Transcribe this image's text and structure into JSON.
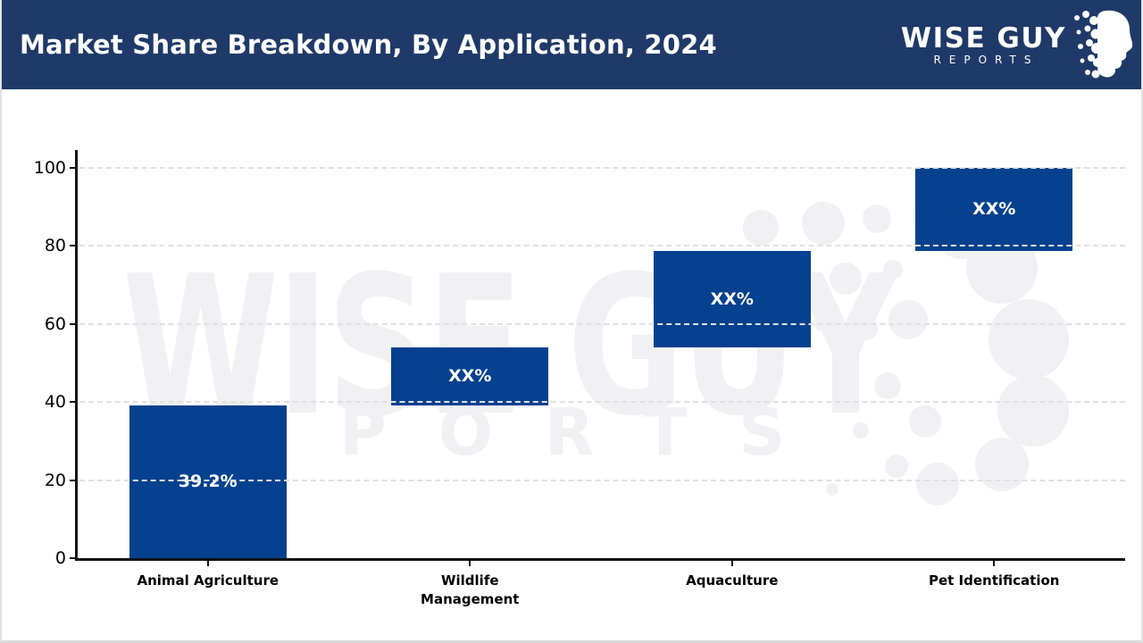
{
  "header": {
    "title": "Market Share Breakdown, By Application, 2024",
    "bg_color": "#1f3a68",
    "logo": {
      "wordmark": "WISE GUY",
      "subtext": "REPORTS"
    }
  },
  "watermark": {
    "line1": "WISE GUY",
    "line2": "PORTS"
  },
  "chart_data": {
    "type": "bar",
    "subtype": "waterfall-floating-bars",
    "title": "Market Share Breakdown, By Application, 2024",
    "categories": [
      "Animal Agriculture",
      "Wildlife\nManagement",
      "Aquaculture",
      "Pet Identification"
    ],
    "bars": [
      {
        "category": "Animal Agriculture",
        "start": 0,
        "end": 39.2,
        "label": "39.2%"
      },
      {
        "category": "Wildlife Management",
        "start": 39.2,
        "end": 53.9,
        "label": "XX%"
      },
      {
        "category": "Aquaculture",
        "start": 53.9,
        "end": 78.6,
        "label": "XX%"
      },
      {
        "category": "Pet Identification",
        "start": 78.6,
        "end": 100,
        "label": "XX%"
      }
    ],
    "xlabel": "",
    "ylabel": "",
    "ylim": [
      0,
      100
    ],
    "yticks": [
      0,
      20,
      40,
      60,
      80,
      100
    ],
    "grid": "horizontal-dashed",
    "legend": "none",
    "bar_color": "#05418f",
    "bar_label_color": "#ffffff",
    "axis_color": "#111111",
    "gridline_color": "#e1e1e1"
  }
}
